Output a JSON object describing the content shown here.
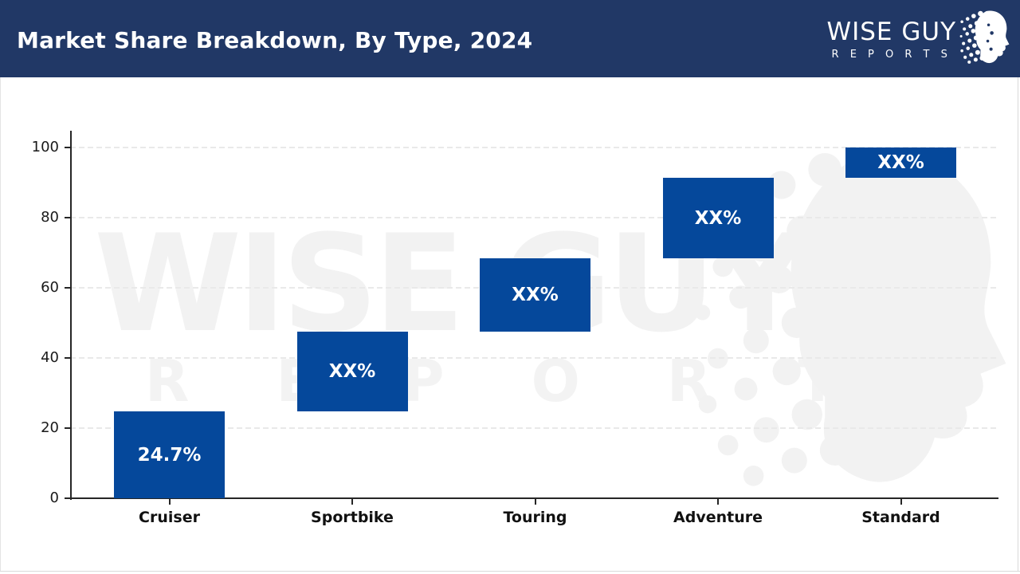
{
  "header": {
    "title": "Market Share Breakdown, By Type, 2024",
    "logo": {
      "line1": "WISE GUY",
      "line2": "R E P O R T S"
    }
  },
  "watermark": {
    "line1": "WISE GUY",
    "line2": "R E P O R T S"
  },
  "chart_data": {
    "type": "bar",
    "subtype": "waterfall",
    "title": "Market Share Breakdown, By Type, 2024",
    "xlabel": "",
    "ylabel": "",
    "categories": [
      "Cruiser",
      "Sportbike",
      "Touring",
      "Adventure",
      "Standard"
    ],
    "segments": [
      {
        "category": "Cruiser",
        "start": 0,
        "end": 24.7,
        "label": "24.7%"
      },
      {
        "category": "Sportbike",
        "start": 24.7,
        "end": 47.6,
        "label": "XX%"
      },
      {
        "category": "Touring",
        "start": 47.6,
        "end": 68.3,
        "label": "XX%"
      },
      {
        "category": "Adventure",
        "start": 68.3,
        "end": 91.3,
        "label": "XX%"
      },
      {
        "category": "Standard",
        "start": 91.3,
        "end": 100,
        "label": "XX%"
      }
    ],
    "ylim": [
      0,
      100
    ],
    "yticks": [
      0,
      20,
      40,
      60,
      80,
      100
    ],
    "grid": "horizontal dashed",
    "legend": "none",
    "bar_color": "#05489B",
    "bar_label_color": "#ffffff",
    "axis_color": "#262626",
    "gridline_color": "#e9e9e9",
    "header_color": "#213866",
    "watermark_color": "#f2f2f2"
  }
}
